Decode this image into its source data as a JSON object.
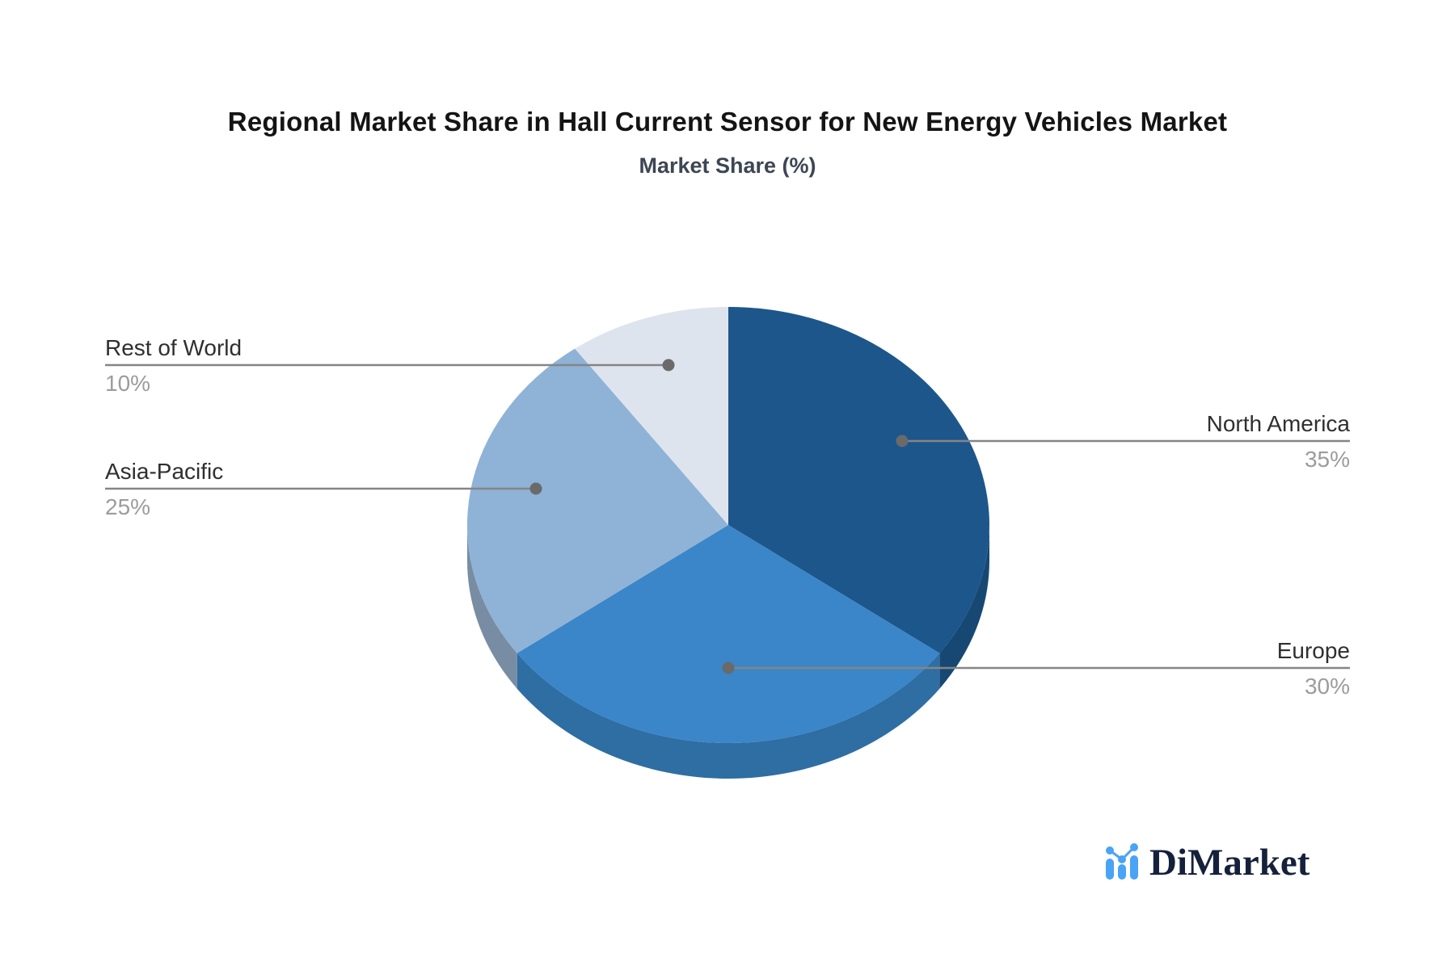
{
  "header": {
    "title": "Regional Market Share in Hall Current Sensor for New Energy Vehicles Market",
    "subtitle": "Market Share (%)"
  },
  "chart_data": {
    "type": "pie",
    "title": "Regional Market Share in Hall Current Sensor for New Energy Vehicles Market",
    "subtitle": "Market Share (%)",
    "effect": "3d",
    "start_angle_deg": 0,
    "direction": "clockwise",
    "legend": "none",
    "slices": [
      {
        "label": "North America",
        "value": 35,
        "pct_label": "35%",
        "color": "#1d568b",
        "wall_color": "#164873",
        "label_side": "right"
      },
      {
        "label": "Europe",
        "value": 30,
        "pct_label": "30%",
        "color": "#3a86c8",
        "wall_color": "#2e6ea3",
        "label_side": "right"
      },
      {
        "label": "Asia-Pacific",
        "value": 25,
        "pct_label": "25%",
        "color": "#8fb2d7",
        "wall_color": "#788da3",
        "label_side": "left"
      },
      {
        "label": "Rest of World",
        "value": 10,
        "pct_label": "10%",
        "color": "#dee4ee",
        "wall_color": "#c2cbd9",
        "label_side": "left"
      }
    ],
    "colors": {
      "leader_line": "#858585",
      "leader_dot": "#6a6a6a",
      "label_text": "#2f2f2f",
      "pct_text": "#9c9c9c"
    }
  },
  "logo": {
    "text": "DiMarket",
    "icon": "bar-chart-logo-icon",
    "icon_color": "#4aa3f5",
    "text_color": "#15213b"
  }
}
